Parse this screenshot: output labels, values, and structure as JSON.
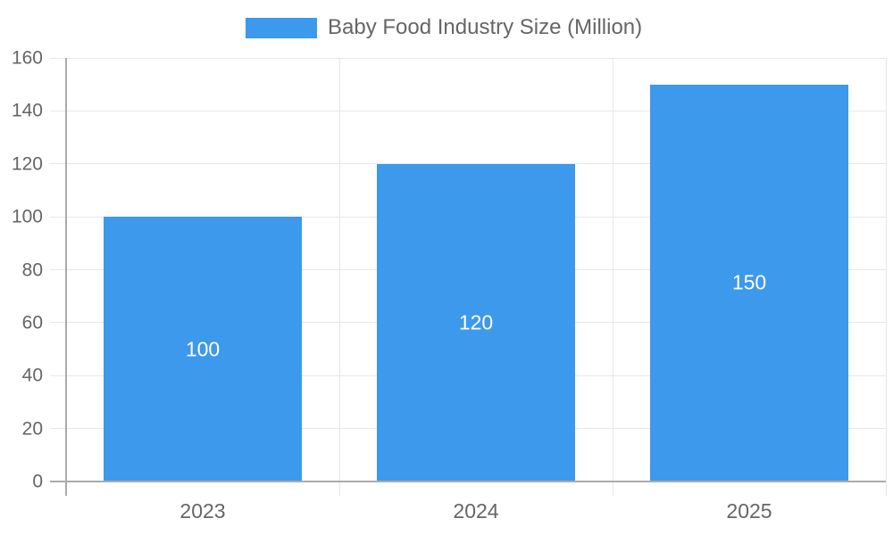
{
  "legend": {
    "label": "Baby Food Industry Size (Million)"
  },
  "colors": {
    "bar": "#3C99EC",
    "grid": "#E8E8E8",
    "axis": "#ABABAB",
    "text": "#666666",
    "bar_label": "#FFFFFF",
    "background": "#FFFFFF"
  },
  "chart_data": {
    "type": "bar",
    "title": "Baby Food Industry Size (Million)",
    "series_name": "Baby Food Industry Size (Million)",
    "categories": [
      "2023",
      "2024",
      "2025"
    ],
    "values": [
      100,
      120,
      150
    ],
    "value_labels": [
      "100",
      "120",
      "150"
    ],
    "value_label_position": "center-inside",
    "xlabel": "",
    "ylabel": "",
    "ylim": [
      0,
      160
    ],
    "yticks": [
      0,
      20,
      40,
      60,
      80,
      100,
      120,
      140,
      160
    ],
    "grid": true,
    "legend_position": "top-center"
  }
}
